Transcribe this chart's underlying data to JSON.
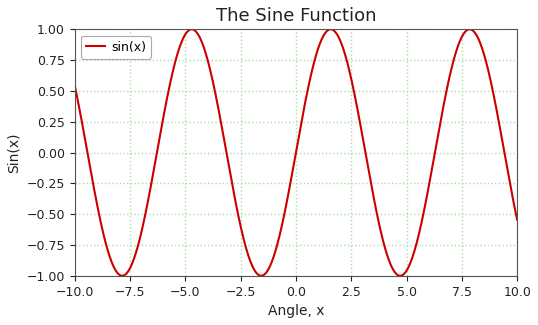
{
  "title": "The Sine Function",
  "xlabel": "Angle, x",
  "ylabel": "Sin(x)",
  "legend_label": "sin(x)",
  "x_min": -10.0,
  "x_max": 10.0,
  "y_min": -1.0,
  "y_max": 1.0,
  "line_color": "#cc0000",
  "line_width": 1.5,
  "grid_color": "#aaddaa",
  "grid_linestyle": "dotted",
  "grid_linewidth": 1.0,
  "background_color": "#ffffff",
  "fig_background_color": "#ffffff",
  "xticks": [
    -10.0,
    -7.5,
    -5.0,
    -2.5,
    0.0,
    2.5,
    5.0,
    7.5,
    10.0
  ],
  "yticks": [
    -1.0,
    -0.75,
    -0.5,
    -0.25,
    0.0,
    0.25,
    0.5,
    0.75,
    1.0
  ],
  "num_points": 1000,
  "title_fontsize": 13,
  "label_fontsize": 10,
  "tick_fontsize": 9,
  "legend_fontsize": 9,
  "figwidth": 5.38,
  "figheight": 3.25,
  "dpi": 100
}
